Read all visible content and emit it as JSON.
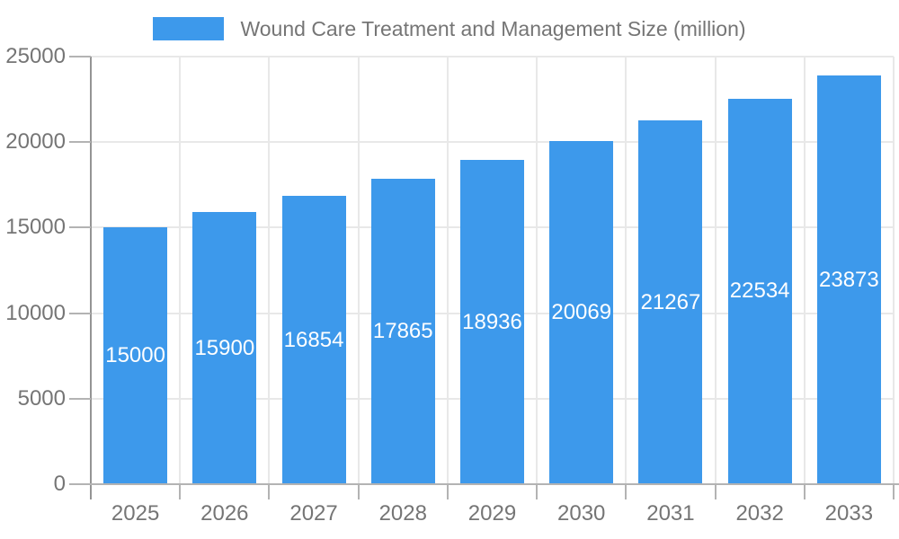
{
  "chart_data": {
    "type": "bar",
    "title": "Wound Care Treatment and Management Size (million)",
    "categories": [
      "2025",
      "2026",
      "2027",
      "2028",
      "2029",
      "2030",
      "2031",
      "2032",
      "2033"
    ],
    "values": [
      15000,
      15900,
      16854,
      17865,
      18936,
      20069,
      21267,
      22534,
      23873
    ],
    "xlabel": "",
    "ylabel": "",
    "ylim": [
      0,
      25000
    ],
    "yticks": [
      0,
      5000,
      10000,
      15000,
      20000,
      25000
    ],
    "grid": "horizontal and vertical light gridlines",
    "legend_position": "top-center",
    "value_labels": "white, centered inside bars",
    "colors": {
      "bar": "#3d99eb",
      "value_label": "#ffffff",
      "axis_text": "#757575",
      "legend_text": "#757575",
      "gridline": "#e8e8e8",
      "y_axis_line": "#949494",
      "x_axis_line": "#b3b3b3",
      "tick": "#b3b3b3",
      "background": "#ffffff"
    }
  }
}
